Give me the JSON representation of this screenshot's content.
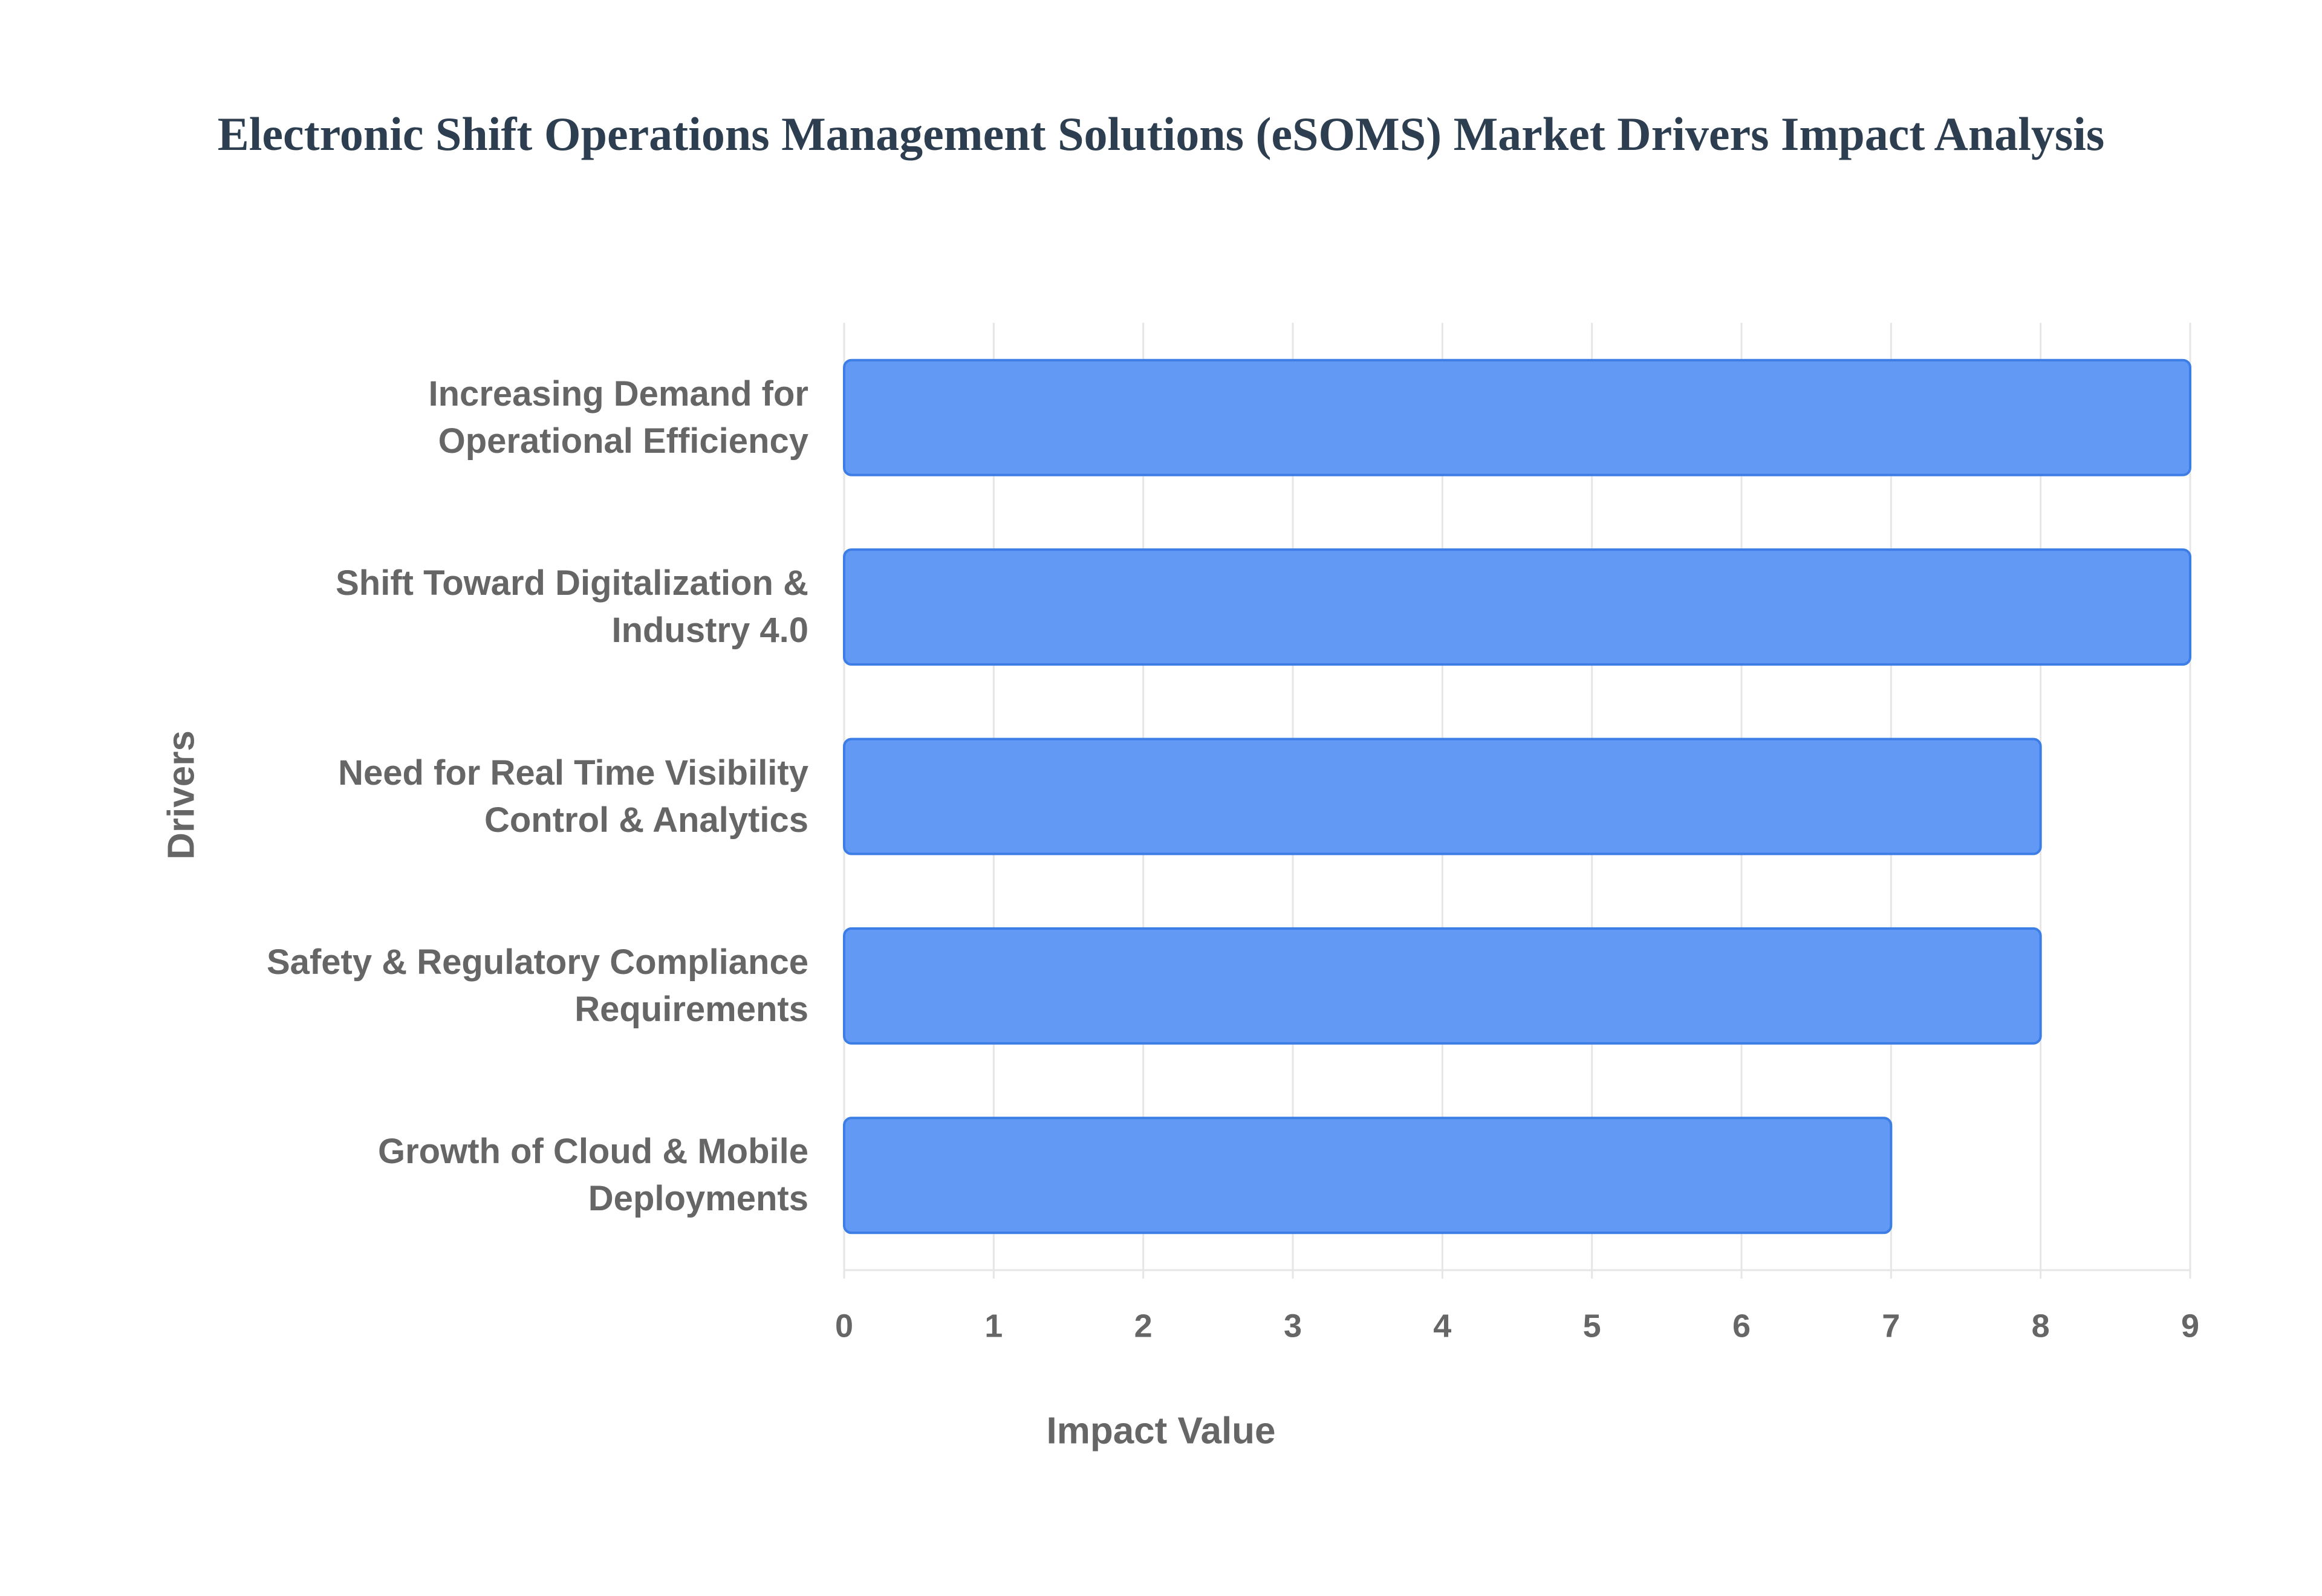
{
  "chart_data": {
    "type": "bar",
    "orientation": "horizontal",
    "title": "Electronic Shift Operations Management Solutions (eSOMS) Market Drivers Impact Analysis",
    "x_label": "Impact Value",
    "y_label": "Drivers",
    "categories": [
      "Increasing Demand for Operational Efficiency",
      "Shift Toward Digitalization & Industry 4.0",
      "Need for Real Time Visibility Control & Analytics",
      "Safety & Regulatory Compliance Requirements",
      "Growth of Cloud & Mobile Deployments"
    ],
    "values": [
      9,
      9,
      8,
      8,
      7
    ],
    "color": "#6199f5",
    "xlim": [
      0,
      9
    ],
    "xticks": [
      0,
      1,
      2,
      3,
      4,
      5,
      6,
      7,
      8,
      9
    ],
    "grid": true
  }
}
